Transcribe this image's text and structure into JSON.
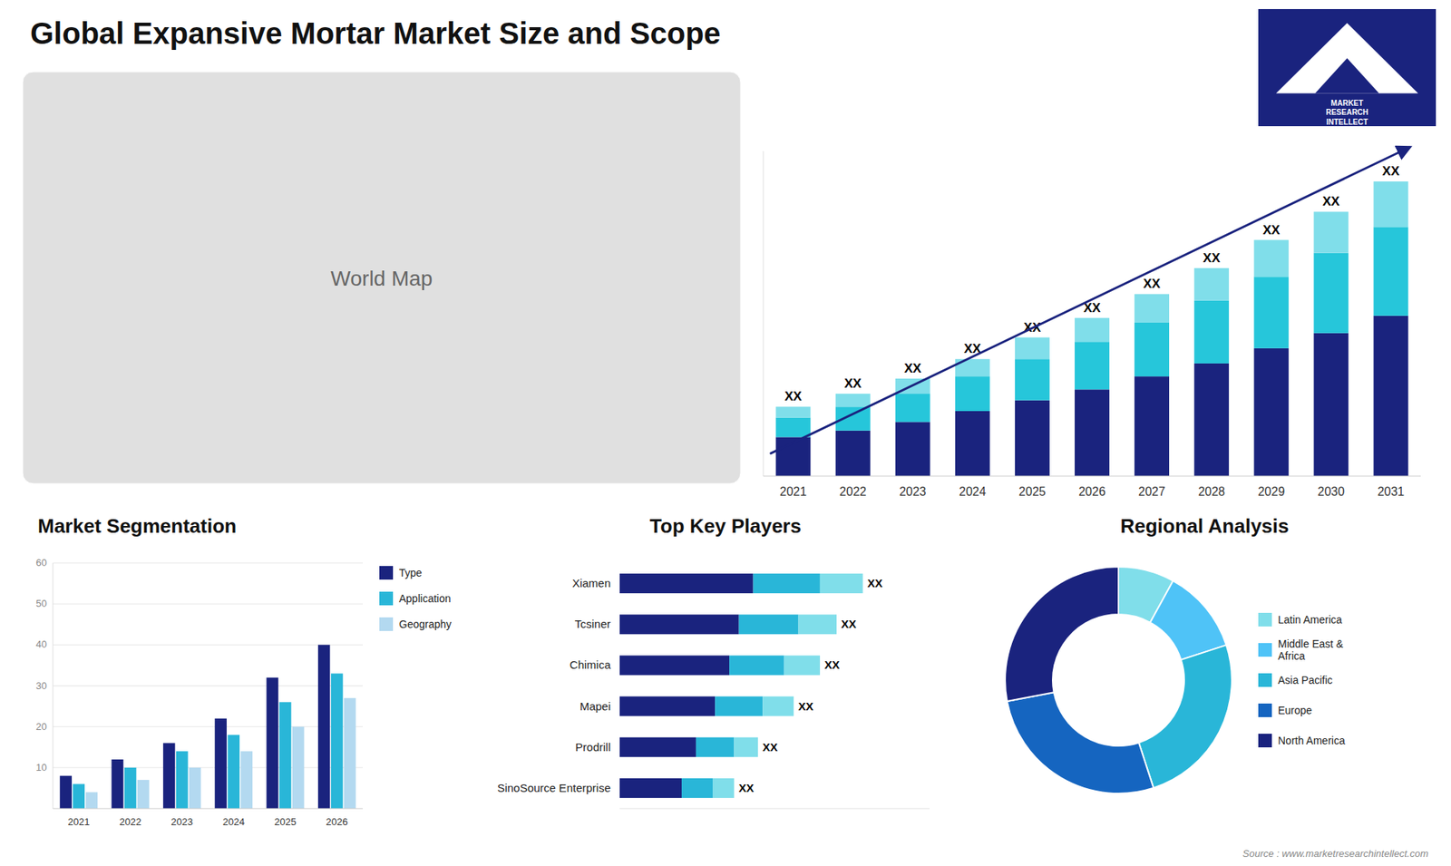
{
  "chart_data": [
    {
      "type": "bar",
      "title": "Global Expansive Mortar Market Size and Scope",
      "stacked": true,
      "tick_labels": "x",
      "categories": [
        2021,
        2022,
        2023,
        2024,
        2025,
        2026,
        2027,
        2028,
        2029,
        2030,
        2031
      ],
      "series": [
        {
          "color": "#1a237e",
          "values": [
            0.9,
            1.05,
            1.25,
            1.5,
            1.75,
            2.0,
            2.3,
            2.6,
            2.95,
            3.3,
            3.7
          ]
        },
        {
          "color": "#26c6da",
          "values": [
            0.45,
            0.55,
            0.65,
            0.8,
            0.95,
            1.1,
            1.25,
            1.45,
            1.65,
            1.85,
            2.05
          ]
        },
        {
          "color": "#80deea",
          "values": [
            0.25,
            0.3,
            0.35,
            0.4,
            0.5,
            0.55,
            0.65,
            0.75,
            0.85,
            0.95,
            1.05
          ]
        }
      ],
      "ylim": [
        0,
        7.5
      ],
      "annotations": [
        "XX",
        "XX",
        "XX",
        "XX",
        "XX",
        "XX",
        "XX",
        "XX",
        "XX",
        "XX",
        "XX"
      ]
    },
    {
      "type": "map",
      "annotations": [
        "World Map"
      ]
    },
    {
      "type": "logo",
      "annotations": [
        "MARKET",
        "RESEARCH",
        "INTELLECT"
      ]
    },
    {
      "type": "bar",
      "title": "Market Segmentation",
      "categories": [
        2021,
        2022,
        2023,
        2024,
        2025,
        2026
      ],
      "series": [
        {
          "name": "Type",
          "color": "#1a237e",
          "values": [
            8,
            12,
            16,
            22,
            32,
            40
          ]
        },
        {
          "name": "Application",
          "color": "#29b6d8",
          "values": [
            6,
            10,
            14,
            18,
            26,
            33
          ]
        },
        {
          "name": "Geography",
          "color": "#b3d9f0",
          "values": [
            4,
            7,
            10,
            14,
            20,
            27
          ]
        }
      ],
      "ylim": [
        0,
        60
      ],
      "yticks": [
        10,
        20,
        30,
        40,
        50,
        60
      ],
      "grid": true,
      "legend": "right"
    },
    {
      "type": "bar",
      "title": "Top Key Players",
      "orientation": "horizontal",
      "stacked": true,
      "tick_labels": "y",
      "categories": [
        "Xiamen",
        "Tcsiner",
        "Chimica",
        "Mapei",
        "Prodrill",
        "SinoSource Enterprise"
      ],
      "series": [
        {
          "color": "#1a237e",
          "values": [
            2.8,
            2.5,
            2.3,
            2.0,
            1.6,
            1.3
          ]
        },
        {
          "color": "#29b6d8",
          "values": [
            1.4,
            1.25,
            1.15,
            1.0,
            0.8,
            0.65
          ]
        },
        {
          "color": "#80deea",
          "values": [
            0.9,
            0.8,
            0.75,
            0.65,
            0.5,
            0.45
          ]
        }
      ],
      "xlim": [
        0,
        6.5
      ],
      "annotations": [
        "XX",
        "XX",
        "XX",
        "XX",
        "XX",
        "XX"
      ]
    },
    {
      "type": "pie",
      "title": "Regional Analysis",
      "categories": [
        "Latin America",
        "Middle East &\nAfrica",
        "Asia Pacific",
        "Europe",
        "North America"
      ],
      "values": [
        8,
        12,
        25,
        27,
        28
      ],
      "colors": [
        "#80deea",
        "#4fc3f7",
        "#29b6d8",
        "#1565c0",
        "#1a237e"
      ],
      "legend": "right",
      "annotations": [
        "Source : www.marketresearchintellect.com"
      ]
    }
  ]
}
